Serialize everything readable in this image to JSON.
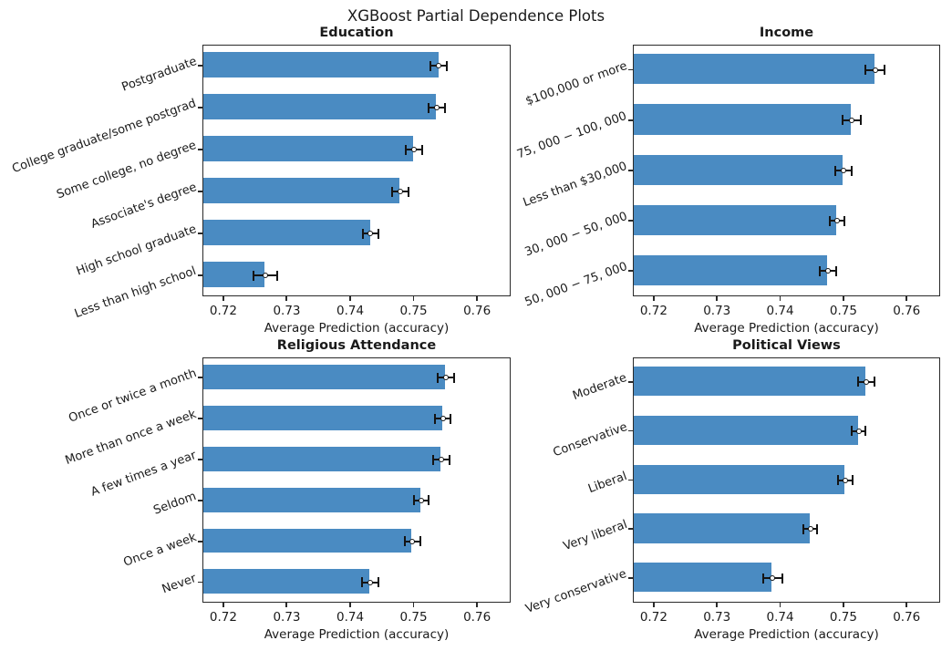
{
  "figure": {
    "title": "XGBoost Partial Dependence Plots",
    "background_color": "#ffffff",
    "bar_color": "#4a8bc2",
    "error_color": "#141414",
    "text_color": "#1a1a1a"
  },
  "chart_data": [
    {
      "type": "bar",
      "orientation": "horizontal",
      "title": "Education",
      "xlabel": "Average Prediction (accuracy)",
      "xlim": [
        0.7167,
        0.7653
      ],
      "xticks": [
        0.72,
        0.73,
        0.74,
        0.75,
        0.76
      ],
      "grid": false,
      "legend": false,
      "categories": [
        "Postgraduate",
        "College graduate/some postgrad",
        "Some college, no degree",
        "Associate's degree",
        "High school graduate",
        "Less than high school"
      ],
      "values": [
        0.754,
        0.7536,
        0.7501,
        0.7479,
        0.7432,
        0.7266
      ],
      "errors": [
        0.0013,
        0.0013,
        0.0013,
        0.0013,
        0.0012,
        0.0019
      ]
    },
    {
      "type": "bar",
      "orientation": "horizontal",
      "title": "Income",
      "xlabel": "Average Prediction (accuracy)",
      "xlim": [
        0.7167,
        0.7653
      ],
      "xticks": [
        0.72,
        0.73,
        0.74,
        0.75,
        0.76
      ],
      "grid": false,
      "legend": false,
      "categories": [
        "$100,000 or more",
        "75, 000 − 100, 000",
        "Less than $30,000",
        "30, 000 − 50, 000",
        "50, 000 − 75, 000"
      ],
      "values": [
        0.755,
        0.7513,
        0.75,
        0.749,
        0.7476
      ],
      "errors": [
        0.0015,
        0.0014,
        0.0013,
        0.0012,
        0.0013
      ]
    },
    {
      "type": "bar",
      "orientation": "horizontal",
      "title": "Religious Attendance",
      "xlabel": "Average Prediction (accuracy)",
      "xlim": [
        0.7167,
        0.7653
      ],
      "xticks": [
        0.72,
        0.73,
        0.74,
        0.75,
        0.76
      ],
      "grid": false,
      "legend": false,
      "categories": [
        "Once or twice a month",
        "More than once a week",
        "A few times a year",
        "Seldom",
        "Once a week",
        "Never"
      ],
      "values": [
        0.7551,
        0.7546,
        0.7544,
        0.7512,
        0.7498,
        0.7431
      ],
      "errors": [
        0.0013,
        0.0012,
        0.0013,
        0.0011,
        0.0012,
        0.0013
      ]
    },
    {
      "type": "bar",
      "orientation": "horizontal",
      "title": "Political Views",
      "xlabel": "Average Prediction (accuracy)",
      "xlim": [
        0.7167,
        0.7653
      ],
      "xticks": [
        0.72,
        0.73,
        0.74,
        0.75,
        0.76
      ],
      "grid": false,
      "legend": false,
      "categories": [
        "Moderate",
        "Conservative",
        "Liberal",
        "Very liberal",
        "Very conservative"
      ],
      "values": [
        0.7536,
        0.7524,
        0.7503,
        0.7448,
        0.7388
      ],
      "errors": [
        0.0013,
        0.0011,
        0.0012,
        0.0011,
        0.0015
      ]
    }
  ]
}
